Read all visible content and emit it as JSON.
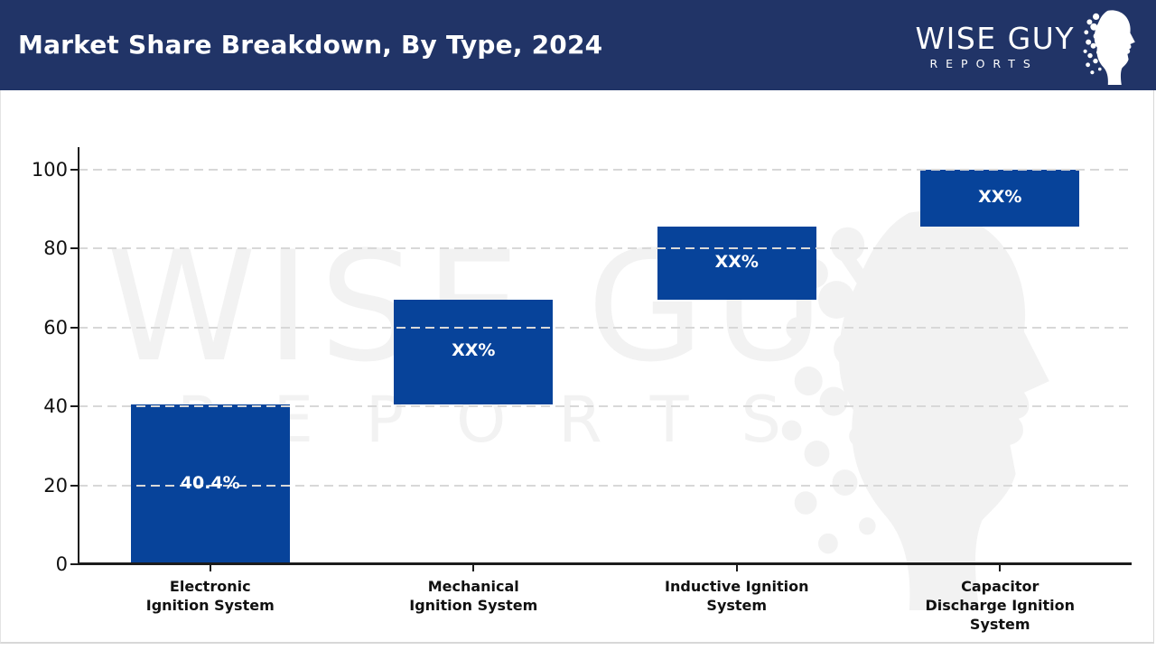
{
  "header": {
    "title": "Market Share Breakdown, By Type, 2024",
    "logo": {
      "name": "WISE GUY",
      "sub": "REPORTS"
    }
  },
  "watermark": {
    "line1": "WISE GUY",
    "line2": "REPORTS"
  },
  "chart_data": {
    "type": "bar",
    "subtype": "floating-waterfall",
    "title": "Market Share Breakdown, By Type, 2024",
    "categories": [
      "Electronic Ignition System",
      "Mechanical Ignition System",
      "Inductive Ignition System",
      "Capacitor Discharge Ignition System"
    ],
    "category_label_lines": [
      [
        "Electronic",
        "Ignition System"
      ],
      [
        "Mechanical",
        "Ignition System"
      ],
      [
        "Inductive Ignition",
        "System"
      ],
      [
        "Capacitor",
        "Discharge Ignition",
        "System"
      ]
    ],
    "segments": [
      {
        "category": "Electronic Ignition System",
        "start": 0,
        "end": 40.4,
        "label": "40.4%"
      },
      {
        "category": "Mechanical Ignition System",
        "start": 40.4,
        "end": 67,
        "label": "XX%"
      },
      {
        "category": "Inductive Ignition System",
        "start": 67,
        "end": 85.5,
        "label": "XX%"
      },
      {
        "category": "Capacitor Discharge Ignition System",
        "start": 85.5,
        "end": 100,
        "label": "XX%"
      }
    ],
    "ylim": [
      0,
      100
    ],
    "yticks": [
      0,
      20,
      40,
      60,
      80,
      100
    ],
    "grid": "horizontal-dashed",
    "legend": "none",
    "xlabel": "",
    "ylabel": ""
  },
  "colors": {
    "header_bg": "#213467",
    "bar": "#07439a",
    "axis": "#1c1c1c",
    "grid": "#d8d8d8",
    "bar_label_text": "#ffffff",
    "watermark": "#f2f2f2"
  }
}
